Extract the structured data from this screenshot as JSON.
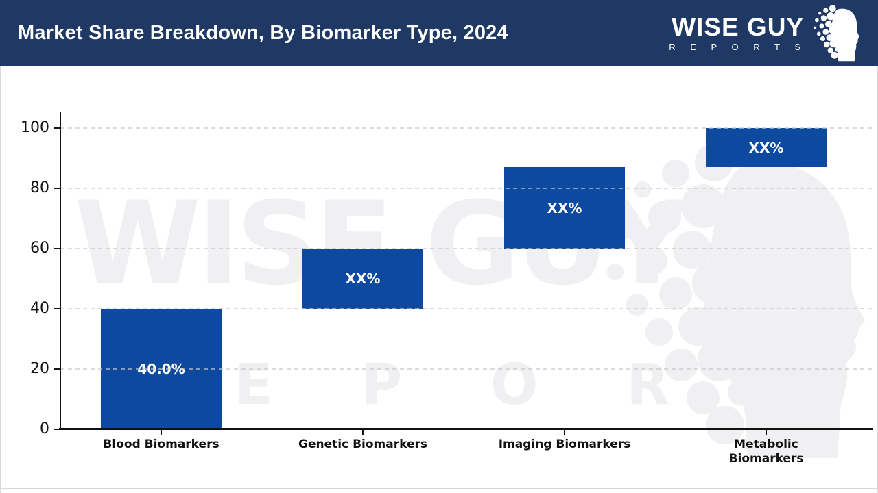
{
  "header": {
    "title": "Market Share Breakdown, By Biomarker Type, 2024",
    "logo": {
      "line1": "WISE GUY",
      "line2": "R E P O R T S"
    },
    "bg_color": "#1f3864"
  },
  "watermark": {
    "line1": "WISE GUY",
    "line2": "R E P O R T S"
  },
  "chart_data": {
    "type": "bar",
    "subtype": "floating-waterfall",
    "title": "Market Share Breakdown, By Biomarker Type, 2024",
    "xlabel": "",
    "ylabel": "",
    "categories": [
      "Blood Biomarkers",
      "Genetic Biomarkers",
      "Imaging Biomarkers",
      "Metabolic Biomarkers"
    ],
    "bars": [
      {
        "category": "Blood Biomarkers",
        "category_lines": [
          "Blood Biomarkers"
        ],
        "start": 0,
        "end": 40,
        "label": "40.0%"
      },
      {
        "category": "Genetic Biomarkers",
        "category_lines": [
          "Genetic Biomarkers"
        ],
        "start": 40,
        "end": 60,
        "label": "XX%"
      },
      {
        "category": "Imaging Biomarkers",
        "category_lines": [
          "Imaging Biomarkers"
        ],
        "start": 60,
        "end": 87,
        "label": "XX%"
      },
      {
        "category": "Metabolic Biomarkers",
        "category_lines": [
          "Metabolic",
          "Biomarkers"
        ],
        "start": 87,
        "end": 100,
        "label": "XX%"
      }
    ],
    "yticks": [
      0,
      20,
      40,
      60,
      80,
      100
    ],
    "ylim": [
      0,
      100
    ],
    "grid": true,
    "grid_style": "dashed",
    "legend": false,
    "bar_color": "#0d4a9f",
    "bar_label_color": "#ffffff",
    "axis_color": "#111111",
    "watermark_color": "#f0f0f2"
  }
}
